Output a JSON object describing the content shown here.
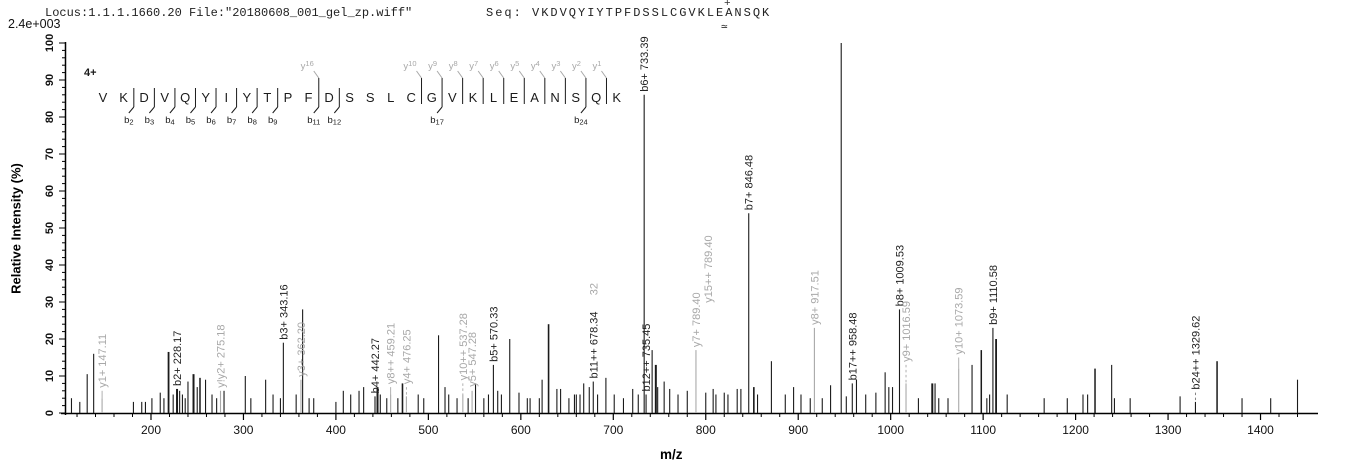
{
  "header": {
    "locus_file": "Locus:1.1.1.1660.20 File:\"20180608_001_gel_zp.wiff\"",
    "seq": "Seq: VKDVQYIYTPFDSSLCGVKLEANSQK",
    "mod_plus": "+",
    "mod_tilde": "≃",
    "intensity_scale": "2.4e+003"
  },
  "axes": {
    "x_label": "m/z",
    "y_label": "Relative  Intensity (%)",
    "x_major_ticks": [
      200,
      300,
      400,
      500,
      600,
      700,
      800,
      900,
      1000,
      1100,
      1200,
      1300,
      1400
    ],
    "x_minor_step": 20,
    "y_major_step": 10,
    "y_minor_step": 2,
    "y_max": 100,
    "x_range": [
      107,
      1460
    ]
  },
  "ladder": {
    "charge_label": "4+",
    "residues": [
      "V",
      "K",
      "D",
      "V",
      "Q",
      "Y",
      "I",
      "Y",
      "T",
      "P",
      "F",
      "D",
      "S",
      "S",
      "L",
      "C",
      "G",
      "V",
      "K",
      "L",
      "E",
      "A",
      "N",
      "S",
      "Q",
      "K"
    ],
    "b_ions": [
      {
        "label": "b2",
        "after": 2
      },
      {
        "label": "b3",
        "after": 3
      },
      {
        "label": "b4",
        "after": 4
      },
      {
        "label": "b5",
        "after": 5
      },
      {
        "label": "b6",
        "after": 6
      },
      {
        "label": "b7",
        "after": 7
      },
      {
        "label": "b8",
        "after": 8
      },
      {
        "label": "b9",
        "after": 9
      },
      {
        "label": "b11",
        "after": 11
      },
      {
        "label": "b12",
        "after": 12
      },
      {
        "label": "b17",
        "after": 17
      },
      {
        "label": "b24",
        "after": 24
      }
    ],
    "y_ions": [
      {
        "label": "y16",
        "after": 11
      },
      {
        "label": "y10",
        "after": 16
      },
      {
        "label": "y9",
        "after": 17
      },
      {
        "label": "y8",
        "after": 18
      },
      {
        "label": "y7",
        "after": 19
      },
      {
        "label": "y6",
        "after": 20
      },
      {
        "label": "y5",
        "after": 21
      },
      {
        "label": "y4",
        "after": 22
      },
      {
        "label": "y3",
        "after": 23
      },
      {
        "label": "y2",
        "after": 24
      },
      {
        "label": "y1",
        "after": 25
      }
    ]
  },
  "colors": {
    "black": "#1a1a1a",
    "gray": "#a8a8a8",
    "axis": "#000000"
  },
  "chart_data": {
    "type": "bar",
    "subtype": "msms-centroid-mass-spectrum",
    "xlabel": "m/z",
    "ylabel": "Relative  Intensity (%)",
    "xlim": [
      107,
      1460
    ],
    "ylim": [
      0,
      100
    ],
    "grid": false,
    "base_peak": {
      "mz": 946.5,
      "pct": 100,
      "label": null
    },
    "peaks": [
      [
        114,
        4
      ],
      [
        123,
        3
      ],
      [
        131,
        10.5
      ],
      [
        138,
        16
      ],
      [
        147.11,
        4,
        1
      ],
      [
        181,
        3
      ],
      [
        190,
        3
      ],
      [
        194,
        3
      ],
      [
        201,
        4
      ],
      [
        210,
        5.5
      ],
      [
        214,
        4
      ],
      [
        219,
        16.5,
        0,
        1.8
      ],
      [
        224,
        5
      ],
      [
        228.17,
        6.5,
        0,
        2
      ],
      [
        231,
        6
      ],
      [
        234,
        5
      ],
      [
        237,
        4
      ],
      [
        240,
        8.5
      ],
      [
        246,
        10.5,
        0,
        2
      ],
      [
        250,
        7
      ],
      [
        253,
        9.5,
        0,
        1.5
      ],
      [
        259,
        9
      ],
      [
        266,
        5
      ],
      [
        271,
        4
      ],
      [
        275.18,
        6,
        1
      ],
      [
        279,
        6
      ],
      [
        302,
        10
      ],
      [
        308,
        4
      ],
      [
        324,
        9
      ],
      [
        332,
        5
      ],
      [
        340,
        4
      ],
      [
        343.16,
        19
      ],
      [
        357,
        5
      ],
      [
        362.2,
        9,
        1
      ],
      [
        364,
        28
      ],
      [
        371,
        4
      ],
      [
        376,
        4
      ],
      [
        400,
        3
      ],
      [
        408,
        6
      ],
      [
        416,
        5
      ],
      [
        425,
        6
      ],
      [
        430,
        7
      ],
      [
        442.27,
        4.5
      ],
      [
        445,
        7,
        0,
        2
      ],
      [
        448,
        5
      ],
      [
        455,
        4
      ],
      [
        459.21,
        5,
        1
      ],
      [
        467,
        4
      ],
      [
        472,
        8,
        0,
        1.6
      ],
      [
        476.25,
        4.5,
        1
      ],
      [
        489,
        5
      ],
      [
        495,
        4
      ],
      [
        511,
        21
      ],
      [
        518,
        7
      ],
      [
        522,
        5
      ],
      [
        531,
        4
      ],
      [
        537.28,
        5,
        1
      ],
      [
        543,
        4
      ],
      [
        547.28,
        6,
        1
      ],
      [
        551,
        8
      ],
      [
        560,
        4
      ],
      [
        565,
        5
      ],
      [
        570.33,
        13
      ],
      [
        575,
        6
      ],
      [
        579,
        5
      ],
      [
        588,
        20
      ],
      [
        598,
        5.5
      ],
      [
        607,
        4
      ],
      [
        610,
        4
      ],
      [
        620,
        4
      ],
      [
        623,
        9
      ],
      [
        630,
        24,
        0,
        1.6
      ],
      [
        639,
        6.5
      ],
      [
        643,
        6.5
      ],
      [
        652,
        4
      ],
      [
        658,
        5
      ],
      [
        660,
        5
      ],
      [
        664,
        5
      ],
      [
        668,
        8
      ],
      [
        674,
        7
      ],
      [
        678.34,
        8.5
      ],
      [
        683,
        5
      ],
      [
        692,
        9.5
      ],
      [
        701,
        5
      ],
      [
        711,
        4
      ],
      [
        721,
        6.5
      ],
      [
        727,
        5
      ],
      [
        733.39,
        86
      ],
      [
        735.45,
        5
      ],
      [
        742,
        17
      ],
      [
        746,
        13,
        0,
        2
      ],
      [
        748,
        7
      ],
      [
        755,
        8.5
      ],
      [
        761,
        6.5
      ],
      [
        770,
        5
      ],
      [
        780,
        6
      ],
      [
        789.4,
        17,
        1
      ],
      [
        800,
        5.5
      ],
      [
        808,
        6.5
      ],
      [
        811,
        5
      ],
      [
        820,
        5.5
      ],
      [
        824,
        5
      ],
      [
        834,
        6.5
      ],
      [
        838,
        6.5
      ],
      [
        846.48,
        54
      ],
      [
        852,
        7,
        0,
        1.6
      ],
      [
        856,
        5
      ],
      [
        871,
        14
      ],
      [
        886,
        5
      ],
      [
        895,
        7
      ],
      [
        903,
        5
      ],
      [
        913,
        4
      ],
      [
        917.51,
        23,
        1
      ],
      [
        926,
        4
      ],
      [
        935,
        7.5
      ],
      [
        946.5,
        100
      ],
      [
        952,
        4.5
      ],
      [
        958.48,
        8
      ],
      [
        963,
        9
      ],
      [
        973,
        5
      ],
      [
        984,
        5.5
      ],
      [
        994,
        11
      ],
      [
        998,
        7
      ],
      [
        1002,
        7
      ],
      [
        1009.53,
        28
      ],
      [
        1016.59,
        8,
        1
      ],
      [
        1030,
        4
      ],
      [
        1045,
        8,
        0,
        2
      ],
      [
        1048,
        8
      ],
      [
        1052,
        4
      ],
      [
        1062,
        4
      ],
      [
        1073.59,
        12,
        1
      ],
      [
        1088,
        13
      ],
      [
        1098,
        17,
        0,
        1.5
      ],
      [
        1104,
        4
      ],
      [
        1107,
        5
      ],
      [
        1110.58,
        23
      ],
      [
        1114,
        20,
        0,
        1.8
      ],
      [
        1126,
        5
      ],
      [
        1166,
        4
      ],
      [
        1191,
        4
      ],
      [
        1208,
        5
      ],
      [
        1213,
        5
      ],
      [
        1221,
        12,
        0,
        1.5
      ],
      [
        1239,
        13
      ],
      [
        1242,
        4
      ],
      [
        1259,
        4
      ],
      [
        1313,
        4.5
      ],
      [
        1329.62,
        3
      ],
      [
        1353,
        14,
        0,
        1.5
      ],
      [
        1380,
        4
      ],
      [
        1411,
        4
      ],
      [
        1440,
        9
      ]
    ],
    "labels": [
      {
        "mz": 147.11,
        "text": "y1+ 147.11",
        "gray": true,
        "at": 6
      },
      {
        "mz": 228.17,
        "text": "b2+ 228.17",
        "gray": false,
        "at": 6.5
      },
      {
        "mz": 275.18,
        "text": "y!y2+ 275.18",
        "gray": true,
        "at": 6
      },
      {
        "mz": 343.16,
        "text": "b3+ 343.16",
        "gray": false,
        "at": 19
      },
      {
        "mz": 362.2,
        "text": "y3+ 362.20",
        "gray": true,
        "at": 9
      },
      {
        "mz": 442.27,
        "text": "b4+ 442.27",
        "gray": false,
        "at": 4.5
      },
      {
        "mz": 459.21,
        "text": "y8++ 459.21",
        "gray": true,
        "at": 7
      },
      {
        "mz": 476.25,
        "text": "y4+ 476.25",
        "gray": true,
        "at": 7,
        "dash": true
      },
      {
        "mz": 537.28,
        "text": "y10++ 537.28",
        "gray": true,
        "at": 8,
        "dash": true
      },
      {
        "mz": 547.28,
        "text": "y5+ 547.28",
        "gray": true,
        "at": 6.3
      },
      {
        "mz": 570.33,
        "text": "b5+ 570.33",
        "gray": false,
        "at": 13
      },
      {
        "mz": 678.34,
        "text": "b11++ 678.34",
        "gray": false,
        "at": 8.5
      },
      {
        "mz": 678.34,
        "text": "32",
        "gray": true,
        "at": 31,
        "float": true
      },
      {
        "mz": 733.39,
        "text": "b6+ 733.39",
        "gray": false,
        "at": 86
      },
      {
        "mz": 735.45,
        "text": "b12++ 735.45",
        "gray": false,
        "at": 5
      },
      {
        "mz": 789.4,
        "text": "y7+ 789.40",
        "gray": true,
        "at": 17
      },
      {
        "mz": 789.4,
        "text": "y15++ 789.40",
        "gray": true,
        "at": 29,
        "dx": 12,
        "float": true
      },
      {
        "mz": 846.48,
        "text": "b7+ 846.48",
        "gray": false,
        "at": 54
      },
      {
        "mz": 917.51,
        "text": "y8+ 917.51",
        "gray": true,
        "at": 23
      },
      {
        "mz": 958.48,
        "text": "b17++ 958.48",
        "gray": false,
        "at": 8
      },
      {
        "mz": 1009.53,
        "text": "b8+ 1009.53",
        "gray": false,
        "at": 28
      },
      {
        "mz": 1016.59,
        "text": "y9+ 1016.59",
        "gray": true,
        "at": 13,
        "dash": true
      },
      {
        "mz": 1073.59,
        "text": "y10+ 1073.59",
        "gray": true,
        "at": 15
      },
      {
        "mz": 1110.58,
        "text": "b9+ 1110.58",
        "gray": false,
        "at": 23
      },
      {
        "mz": 1329.62,
        "text": "b24++ 1329.62",
        "gray": false,
        "at": 5.5,
        "dash": true
      }
    ]
  }
}
